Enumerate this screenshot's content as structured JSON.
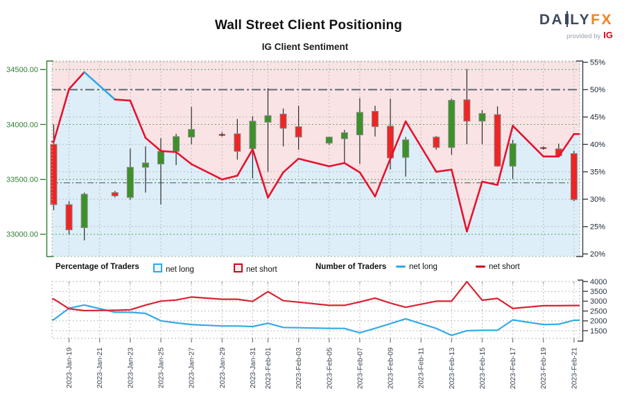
{
  "header": {
    "title": "Wall Street Client Positioning",
    "subtitle": "IG Client Sentiment",
    "logo": {
      "brand_left": "DA",
      "brand_right": "LY",
      "brand_suffix": "FX",
      "provided_by": "provided by",
      "ig": "IG"
    }
  },
  "legend": {
    "percentage_title": "Percentage of Traders",
    "percentage_net_long": "net long",
    "percentage_net_short": "net short",
    "number_title": "Number of Traders",
    "number_net_long": "net long",
    "number_net_short": "net short"
  },
  "colors": {
    "sentiment_red": "#e8112d",
    "sentiment_blue": "#2fa8e8",
    "candle_red": "#ee2524",
    "candle_green": "#3c9128",
    "candle_border": "#8a8a8a",
    "wick": "#2a2a2a",
    "doji": "#7a2a2a",
    "price_axis_green": "#2e7d32",
    "pct_axis_dark": "#1c2430",
    "date_label": "#3c4654",
    "pink_fill": "#f9e3e5",
    "blue_fill": "#ddeef8",
    "grid_green": "#61a861",
    "grid_gray": "#bcbcbc",
    "border_green": "#9bb89b",
    "border_gray": "#b5b5b5",
    "ref_gray": "#6b6f76",
    "ref_secondary": "#5f6e7d",
    "count_red": "#d92332",
    "count_blue": "#35aae4"
  },
  "chart_data": [
    {
      "type": "candlestick+line",
      "title": "Wall Street daily candles with IG client net-short percentage of traders",
      "dates": [
        "2023-01-18",
        "2023-01-19",
        "2023-01-20",
        "2023-01-22",
        "2023-01-23",
        "2023-01-24",
        "2023-01-25",
        "2023-01-26",
        "2023-01-27",
        "2023-01-29",
        "2023-01-30",
        "2023-01-31",
        "2023-02-01",
        "2023-02-02",
        "2023-02-03",
        "2023-02-05",
        "2023-02-06",
        "2023-02-07",
        "2023-02-08",
        "2023-02-09",
        "2023-02-10",
        "2023-02-12",
        "2023-02-13",
        "2023-02-14",
        "2023-02-15",
        "2023-02-16",
        "2023-02-17",
        "2023-02-19",
        "2023-02-20",
        "2023-02-21"
      ],
      "day_offsets": [
        0,
        1,
        2,
        4,
        5,
        6,
        7,
        8,
        9,
        11,
        12,
        13,
        14,
        15,
        16,
        18,
        19,
        20,
        21,
        22,
        23,
        25,
        26,
        27,
        28,
        29,
        30,
        32,
        33,
        34
      ],
      "candles_ohlc": [
        [
          33820,
          34000,
          33220,
          33270
        ],
        [
          33270,
          33300,
          33000,
          33040
        ],
        [
          33060,
          33380,
          32945,
          33365
        ],
        [
          33380,
          33395,
          33335,
          33350
        ],
        [
          33335,
          33780,
          33315,
          33610
        ],
        [
          33610,
          33800,
          33380,
          33650
        ],
        [
          33640,
          33875,
          33270,
          33755
        ],
        [
          33755,
          33915,
          33630,
          33890
        ],
        [
          33885,
          34160,
          33820,
          33955
        ],
        [
          33910,
          33930,
          33890,
          33905
        ],
        [
          33915,
          34050,
          33680,
          33755
        ],
        [
          33780,
          34075,
          33510,
          34030
        ],
        [
          34020,
          34330,
          33570,
          34080
        ],
        [
          34095,
          34145,
          33800,
          33965
        ],
        [
          33980,
          34170,
          33770,
          33885
        ],
        [
          33830,
          33890,
          33815,
          33885
        ],
        [
          33870,
          33950,
          33650,
          33925
        ],
        [
          33905,
          34240,
          33640,
          34110
        ],
        [
          34120,
          34170,
          33890,
          33980
        ],
        [
          33985,
          34235,
          33590,
          33695
        ],
        [
          33700,
          33885,
          33525,
          33860
        ],
        [
          33885,
          33895,
          33770,
          33790
        ],
        [
          33790,
          34235,
          33725,
          34220
        ],
        [
          34225,
          34505,
          33820,
          34030
        ],
        [
          34030,
          34130,
          33820,
          34100
        ],
        [
          34090,
          34165,
          33615,
          33620
        ],
        [
          33620,
          33860,
          33505,
          33825
        ],
        [
          33790,
          33800,
          33770,
          33785
        ],
        [
          33778,
          33825,
          33700,
          33715
        ],
        [
          33735,
          33760,
          33300,
          33315
        ]
      ],
      "net_short_pct": [
        40.5,
        50.1,
        53.2,
        48.2,
        48.0,
        41.2,
        38.8,
        38.6,
        36.4,
        33.6,
        34.3,
        39.1,
        30.3,
        34.9,
        37.4,
        36.0,
        36.6,
        34.9,
        30.5,
        37.4,
        44.2,
        35.0,
        35.4,
        24.1,
        33.2,
        32.6,
        43.4,
        37.8,
        37.8,
        41.9
      ],
      "net_long_segment_indices": [
        2,
        3
      ],
      "price_axis": {
        "tick_values": [
          34500,
          34000,
          33500,
          33000
        ],
        "tick_labels": [
          "34500.00",
          "34000.00",
          "33500.00",
          "33000.00"
        ],
        "range": [
          32800,
          34580
        ]
      },
      "pct_axis": {
        "tick_values": [
          55,
          50,
          45,
          40,
          35,
          30,
          25,
          20
        ],
        "tick_labels": [
          "55%",
          "50%",
          "45%",
          "40%",
          "35%",
          "30%",
          "25%",
          "20%"
        ],
        "range": [
          19.5,
          55.2
        ]
      },
      "reference_lines_pct": [
        50,
        33
      ],
      "x_ticks": [
        {
          "offset": 1,
          "label": "2023-Jan-19"
        },
        {
          "offset": 3,
          "label": "2023-Jan-21"
        },
        {
          "offset": 5,
          "label": "2023-Jan-23"
        },
        {
          "offset": 7,
          "label": "2023-Jan-25"
        },
        {
          "offset": 9,
          "label": "2023-Jan-27"
        },
        {
          "offset": 11,
          "label": "2023-Jan-29"
        },
        {
          "offset": 13,
          "label": "2023-Jan-31"
        },
        {
          "offset": 14,
          "label": "2023-Feb-01"
        },
        {
          "offset": 16,
          "label": "2023-Feb-03"
        },
        {
          "offset": 18,
          "label": "2023-Feb-05"
        },
        {
          "offset": 20,
          "label": "2023-Feb-07"
        },
        {
          "offset": 22,
          "label": "2023-Feb-09"
        },
        {
          "offset": 24,
          "label": "2023-Feb-11"
        },
        {
          "offset": 26,
          "label": "2023-Feb-13"
        },
        {
          "offset": 28,
          "label": "2023-Feb-15"
        },
        {
          "offset": 30,
          "label": "2023-Feb-17"
        },
        {
          "offset": 32,
          "label": "2023-Feb-19"
        },
        {
          "offset": 34,
          "label": "2023-Feb-21"
        }
      ]
    },
    {
      "type": "line",
      "title": "Number of Traders",
      "series": [
        {
          "name": "net long",
          "color_key": "count_blue",
          "values": [
            2060,
            2645,
            2805,
            2435,
            2435,
            2380,
            2005,
            1900,
            1815,
            1740,
            1740,
            1710,
            1880,
            1665,
            1650,
            1620,
            1615,
            1395,
            1620,
            1860,
            2105,
            1615,
            1265,
            1500,
            1520,
            1520,
            2050,
            1815,
            1830,
            2030
          ]
        },
        {
          "name": "net short",
          "color_key": "count_red",
          "values": [
            3110,
            2615,
            2520,
            2540,
            2565,
            2800,
            3005,
            3060,
            3210,
            3100,
            3100,
            2990,
            3485,
            3025,
            2950,
            2790,
            2790,
            2960,
            3160,
            2900,
            2690,
            3000,
            3000,
            3990,
            3050,
            3140,
            2630,
            2770,
            2770,
            2780
          ]
        }
      ],
      "y_axis": {
        "tick_values": [
          4000,
          3500,
          3000,
          2500,
          2000,
          1500
        ],
        "tick_labels": [
          "4000",
          "3500",
          "3000",
          "2500",
          "2000",
          "1500"
        ],
        "range": [
          1200,
          4050
        ]
      }
    }
  ]
}
